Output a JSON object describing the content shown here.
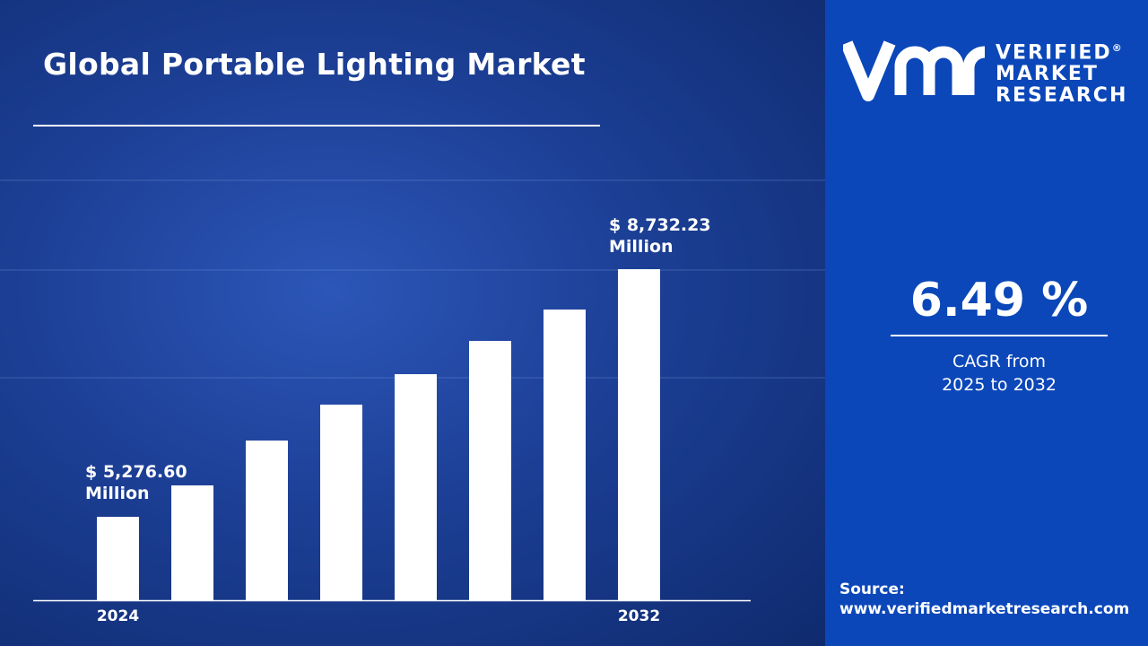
{
  "chart_data": {
    "type": "bar",
    "title": "Global Portable Lighting Market",
    "categories": [
      "2024",
      "",
      "",
      "",
      "",
      "",
      "",
      "2032"
    ],
    "values": [
      5276.6,
      5715,
      6341,
      6842,
      7267,
      7731,
      8169,
      8732.23
    ],
    "bar_color": "#ffffff",
    "grid": false,
    "data_labels": {
      "first": {
        "amount": "$ 5,276.60",
        "unit": "Million"
      },
      "last": {
        "amount": "$ 8,732.23",
        "unit": "Million"
      }
    }
  },
  "brand": {
    "line1": "VERIFIED",
    "line2": "MARKET",
    "line3": "RESEARCH",
    "registered": "®",
    "logo_letters": "vmr"
  },
  "cagr": {
    "value": "6.49 %",
    "label1": "CAGR from",
    "label2": "2025 to 2032"
  },
  "source": {
    "label": "Source:",
    "url": "www.verifiedmarketresearch.com"
  },
  "colors": {
    "panel": "#0b47b9",
    "background": "#1c3f95"
  }
}
